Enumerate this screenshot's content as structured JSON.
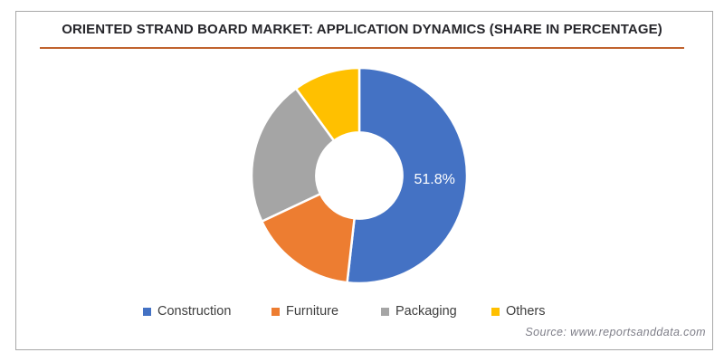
{
  "header": {
    "title": "ORIENTED STRAND BOARD MARKET: APPLICATION DYNAMICS (SHARE IN PERCENTAGE)",
    "title_color": "#26262B",
    "underline_color": "#C0632E"
  },
  "chart_data": {
    "type": "pie",
    "subtype": "donut",
    "title": "ORIENTED STRAND BOARD MARKET: APPLICATION DYNAMICS (SHARE IN PERCENTAGE)",
    "categories": [
      "Construction",
      "Furniture",
      "Packaging",
      "Others"
    ],
    "values": [
      51.8,
      16.2,
      22.0,
      10.0
    ],
    "value_labels": [
      "51.8%",
      "",
      "",
      ""
    ],
    "colors": [
      "#4472C4",
      "#ED7D31",
      "#A5A5A5",
      "#FFC000"
    ],
    "start_angle_deg": 0,
    "direction": "clockwise",
    "donut_hole_ratio": 0.4,
    "slice_border_color": "#FFFFFF",
    "data_label_color": "#FFFFFF",
    "legend_position": "bottom",
    "grid": false
  },
  "footer": {
    "source": "Source: www.reportsanddata.com"
  },
  "layout_hints": {
    "legend_x_positions": [
      158,
      300,
      421,
      543
    ]
  }
}
